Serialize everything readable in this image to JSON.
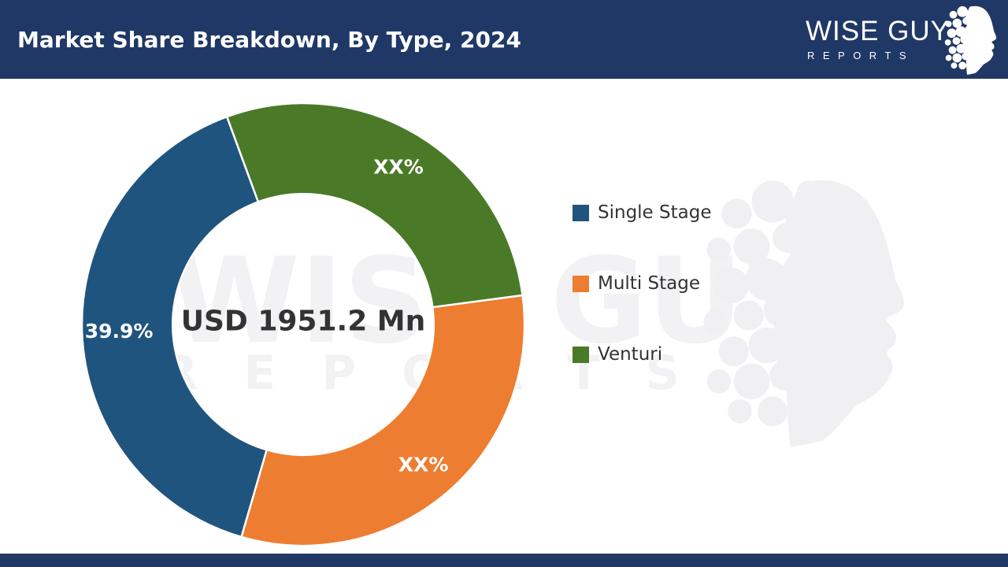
{
  "header": {
    "title": "Market Share Breakdown, By Type, 2024",
    "logo": {
      "brand_top": "WISE GUY",
      "brand_bottom": "REPORTS"
    }
  },
  "watermark": {
    "text_top": "WISE GUY",
    "text_bottom": "REPORTS"
  },
  "chart_data": {
    "type": "pie",
    "subtype": "donut",
    "title": "Market Share Breakdown, By Type, 2024",
    "center_label": "USD 1951.2 Mn",
    "value_unit": "percent_market_share",
    "series": [
      {
        "name": "Single Stage",
        "value": 39.9,
        "display_label": "39.9%",
        "color": "#1F547E"
      },
      {
        "name": "Multi Stage",
        "value": 31.6,
        "display_label": "XX%",
        "color": "#ED7D31"
      },
      {
        "name": "Venturi",
        "value": 28.5,
        "display_label": "XX%",
        "color": "#4A7A28"
      }
    ],
    "legend_position": "right",
    "start_angle_from_top_deg": 196.2,
    "render_order": [
      "Single Stage",
      "Venturi",
      "Multi Stage"
    ],
    "donut_hole_ratio": 0.59,
    "label_radius_ratio": 0.833
  },
  "colors": {
    "header_bg": "#203866",
    "footer_bg": "#203866",
    "text_dark": "#333333",
    "watermark_gray": "#F2F2F4"
  }
}
